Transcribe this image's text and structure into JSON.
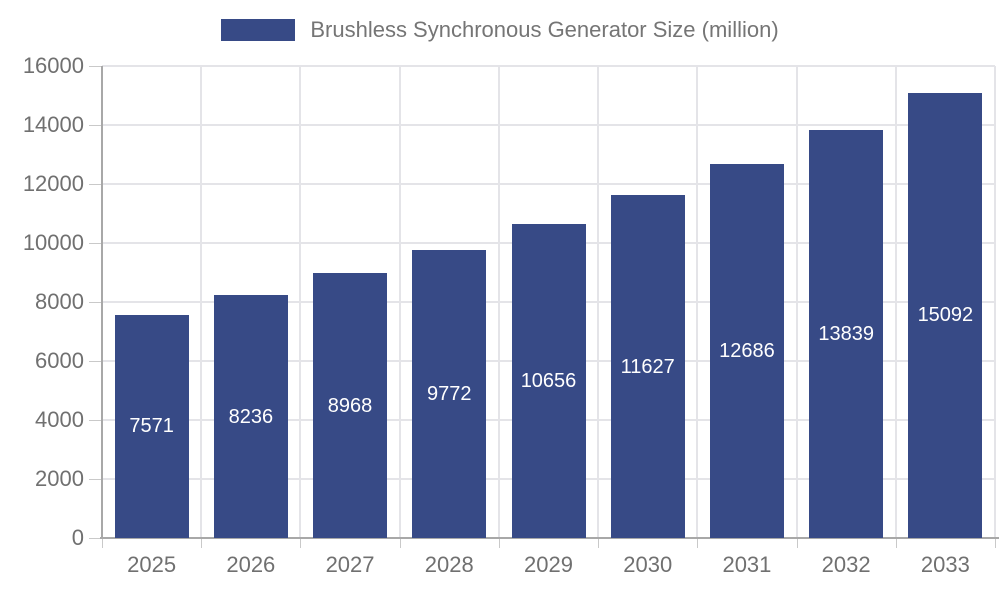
{
  "chart_data": {
    "type": "bar",
    "title": "",
    "legend": "Brushless Synchronous Generator Size (million)",
    "legend_position": "top",
    "categories": [
      "2025",
      "2026",
      "2027",
      "2028",
      "2029",
      "2030",
      "2031",
      "2032",
      "2033"
    ],
    "series": [
      {
        "name": "Brushless Synchronous Generator Size (million)",
        "values": [
          7571,
          8236,
          8968,
          9772,
          10656,
          11627,
          12686,
          13839,
          15092
        ]
      }
    ],
    "xlabel": "",
    "ylabel": "",
    "ylim": [
      0,
      16000
    ],
    "yticks": [
      0,
      2000,
      4000,
      6000,
      8000,
      10000,
      12000,
      14000,
      16000
    ],
    "grid": true,
    "value_labels": "inside-center",
    "colors": {
      "bar": "#374a86",
      "value_label": "#ffffff",
      "axis_text": "#707070",
      "legend_text": "#757575",
      "gridline": "#e4e4e8",
      "axis_line": "#a8a8a8",
      "tick": "#c9c9c9",
      "background": "#ffffff"
    }
  }
}
